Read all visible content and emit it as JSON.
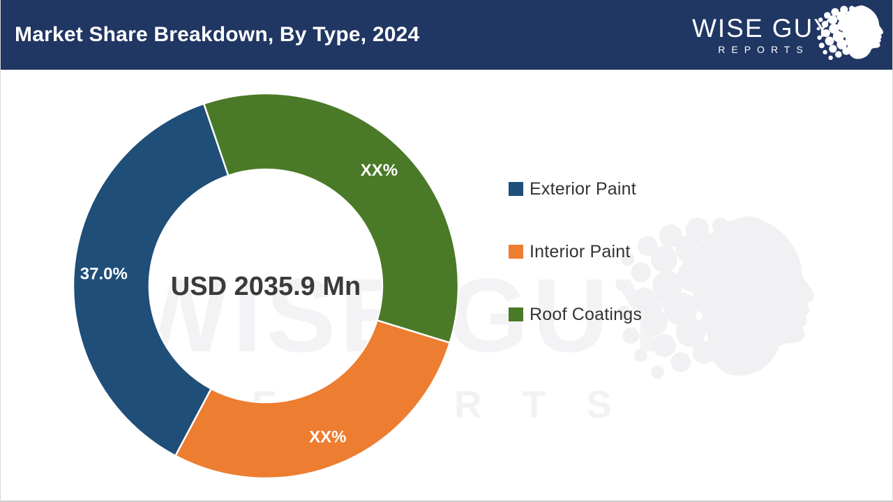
{
  "header": {
    "title": "Market Share Breakdown, By Type, 2024",
    "logo": {
      "line1": "WISE GUY",
      "line2": "REPORTS"
    }
  },
  "watermark": {
    "line1": "WISE GUY",
    "line2": "REPORTS"
  },
  "chart_data": {
    "type": "pie",
    "subtype": "donut",
    "title": "Market Share Breakdown, By Type, 2024",
    "center_label": "USD 2035.9 Mn",
    "start_angle_deg": -18.8,
    "direction": "clockwise",
    "inner_radius_ratio": 0.605,
    "slices": [
      {
        "label": "Roof Coatings",
        "pct": 35,
        "display_label": "XX%",
        "color": "#4a7a28"
      },
      {
        "label": "Interior Paint",
        "pct": 28,
        "display_label": "XX%",
        "color": "#ed7d31"
      },
      {
        "label": "Exterior Paint",
        "pct": 37,
        "display_label": "37.0%",
        "color": "#1f4e78"
      }
    ],
    "legend_position": "right"
  },
  "legend": {
    "items": [
      {
        "label": "Exterior Paint",
        "color": "#1f4e78"
      },
      {
        "label": "Interior Paint",
        "color": "#ed7d31"
      },
      {
        "label": "Roof Coatings",
        "color": "#4a7a28"
      }
    ]
  },
  "colors": {
    "header_bg": "#203663",
    "watermark": "#f3f3f5",
    "center_text": "#3a3a3a"
  }
}
